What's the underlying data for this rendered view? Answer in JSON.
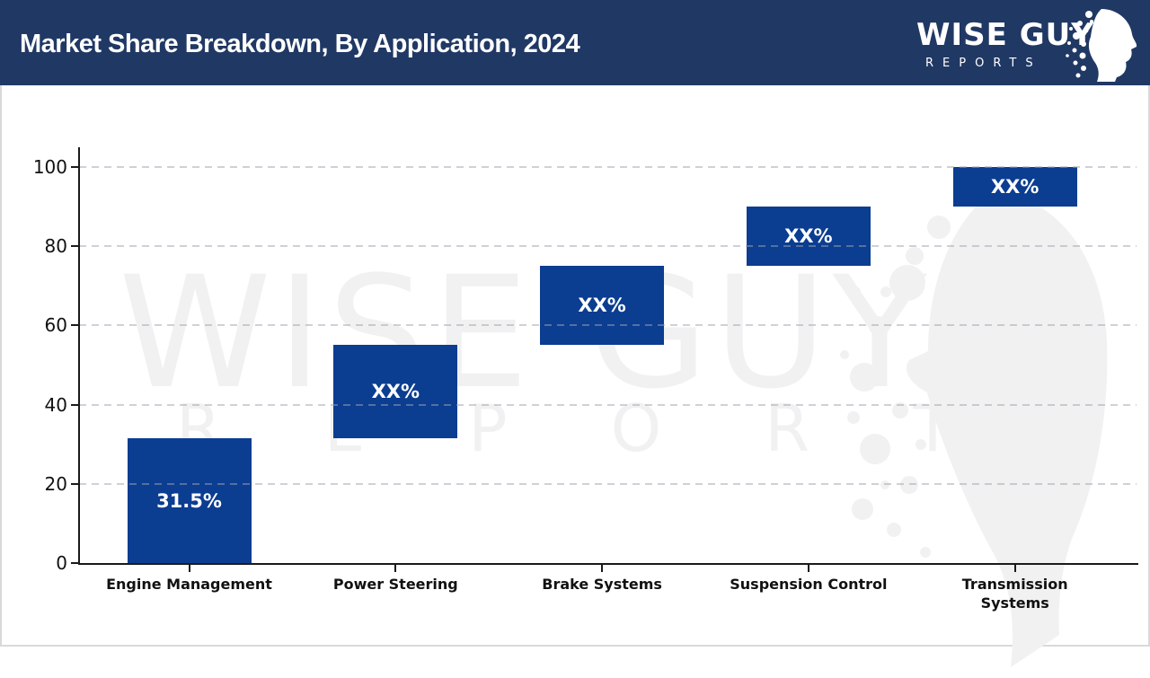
{
  "header": {
    "title": "Market Share Breakdown, By Application, 2024",
    "logo": {
      "wordmark": "WISE GUY",
      "reports": "REPORTS"
    }
  },
  "watermark": {
    "wordmark": "WISE GUY",
    "reports": "R E P O R T S"
  },
  "colors": {
    "header_bg": "#203864",
    "bar_blue": "#0b3d91",
    "axis_black": "#1a1a1a",
    "gridline_gray": "#cfd4dc",
    "watermark_gray": "#f1f1f1",
    "title_white": "#ffffff"
  },
  "chart_data": {
    "type": "bar",
    "subtype": "waterfall",
    "title": "Market Share Breakdown, By Application, 2024",
    "categories": [
      "Engine Management",
      "Power Steering",
      "Brake Systems",
      "Suspension Control",
      "Transmission Systems"
    ],
    "category_label_lines": [
      [
        "Engine Management"
      ],
      [
        "Power Steering"
      ],
      [
        "Brake Systems"
      ],
      [
        "Suspension Control"
      ],
      [
        "Transmission",
        "Systems"
      ]
    ],
    "series": [
      {
        "name": "Market Share",
        "segments": [
          {
            "category": "Engine Management",
            "start": 0,
            "end": 31.5,
            "label": "31.5%"
          },
          {
            "category": "Power Steering",
            "start": 31.5,
            "end": 55,
            "label": "XX%"
          },
          {
            "category": "Brake Systems",
            "start": 55,
            "end": 75,
            "label": "XX%"
          },
          {
            "category": "Suspension Control",
            "start": 75,
            "end": 90,
            "label": "XX%"
          },
          {
            "category": "Transmission Systems",
            "start": 90,
            "end": 100,
            "label": "XX%"
          }
        ]
      }
    ],
    "xlabel": "",
    "ylabel": "",
    "ylim": [
      0,
      105
    ],
    "yticks": [
      0,
      20,
      40,
      60,
      80,
      100
    ],
    "grid": {
      "horizontal": true,
      "style": "dashed"
    },
    "legend": null,
    "bar_color": "#0b3d91",
    "value_label_color": "#ffffff"
  }
}
